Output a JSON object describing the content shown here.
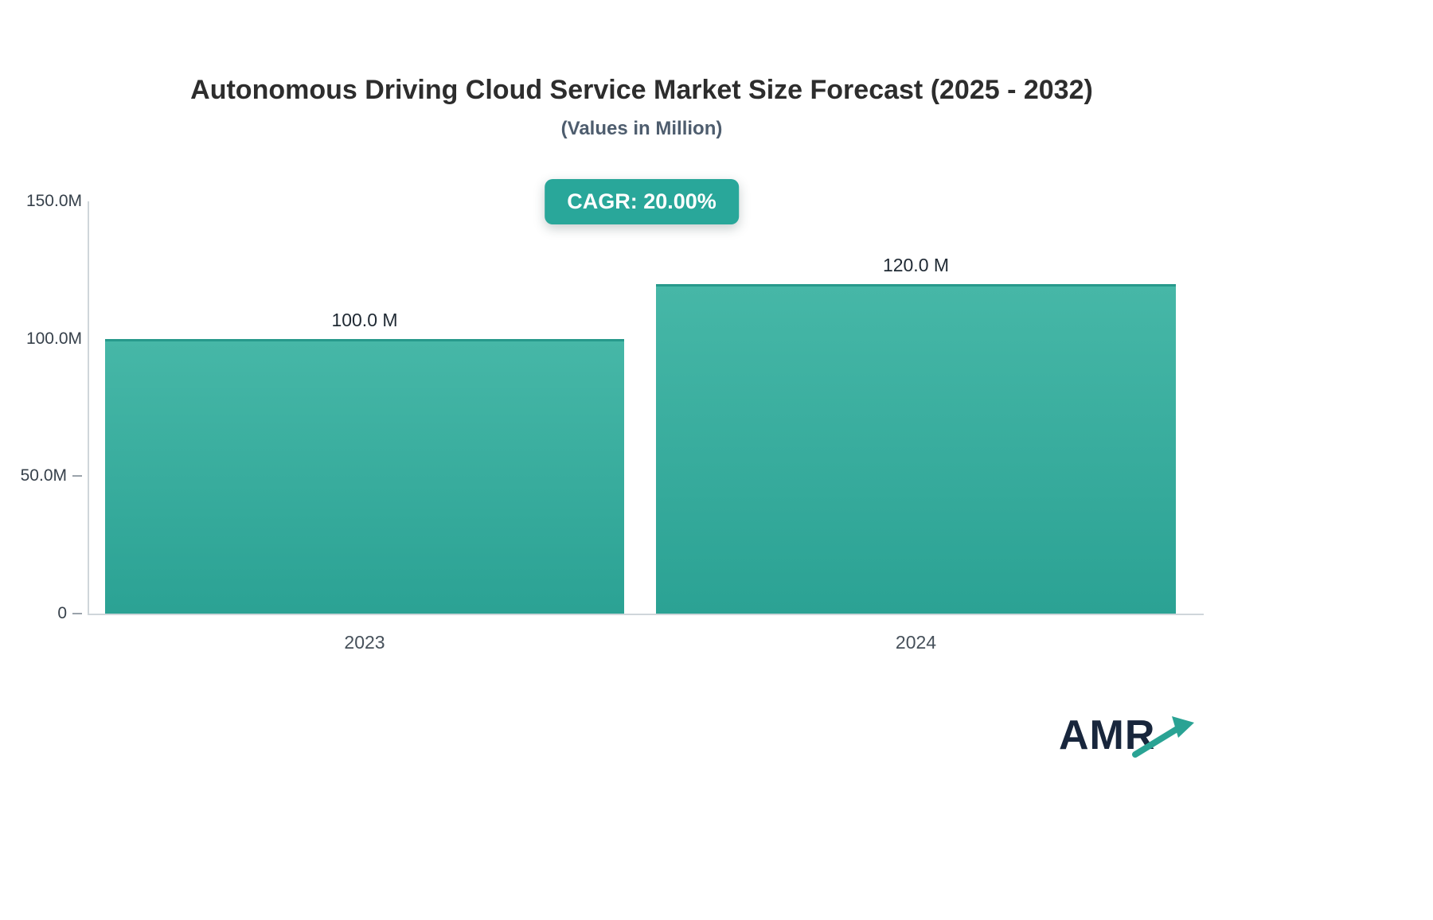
{
  "header": {
    "title": "Autonomous Driving Cloud Service Market Size Forecast (2025 - 2032)",
    "subtitle": "(Values in Million)"
  },
  "badge": {
    "label": "CAGR: 20.00%",
    "bg_color": "#29a79a"
  },
  "chart_data": {
    "type": "bar",
    "categories": [
      "2023",
      "2024"
    ],
    "values": [
      100,
      120
    ],
    "value_labels": [
      "100.0 M",
      "120.0 M"
    ],
    "title": "Autonomous Driving Cloud Service Market Size Forecast (2025 - 2032)",
    "subtitle": "(Values in Million)",
    "cagr_label": "CAGR: 20.00%",
    "xlabel": "",
    "ylabel": "",
    "ylim": [
      0,
      150
    ],
    "yticks": [
      {
        "label": "150.0M",
        "value": 150,
        "dash": false
      },
      {
        "label": "100.0M",
        "value": 100,
        "dash": false
      },
      {
        "label": "50.0M",
        "value": 50,
        "dash": true
      },
      {
        "label": "0",
        "value": 0,
        "dash": true
      }
    ],
    "grid": false,
    "legend": false,
    "bar_color_top": "#46b7a7",
    "bar_color_bottom": "#2ba294"
  },
  "logo": {
    "text": "AMR",
    "arrow_color": "#2aa394"
  }
}
